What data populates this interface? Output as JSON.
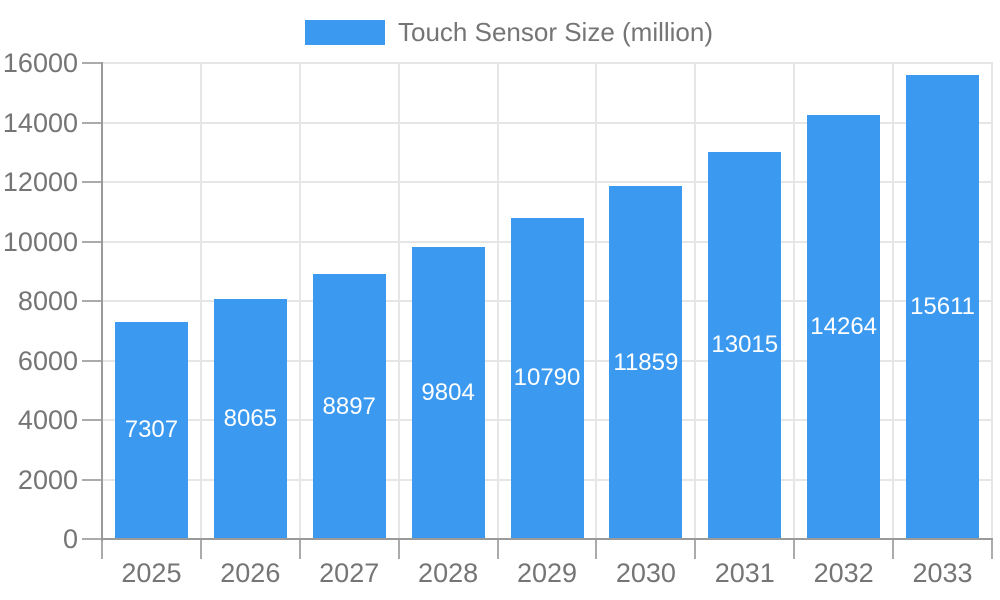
{
  "chart_data": {
    "type": "bar",
    "title": "Touch Sensor Size (million)",
    "categories": [
      "2025",
      "2026",
      "2027",
      "2028",
      "2029",
      "2030",
      "2031",
      "2032",
      "2033"
    ],
    "values": [
      7307,
      8065,
      8897,
      9804,
      10790,
      11859,
      13015,
      14264,
      15611
    ],
    "xlabel": "",
    "ylabel": "",
    "ylim": [
      0,
      16000
    ],
    "yticks": [
      0,
      2000,
      4000,
      6000,
      8000,
      10000,
      12000,
      14000,
      16000
    ],
    "grid": true,
    "value_labels": "inside-center",
    "legend_position": "top-center",
    "legend_label": "Touch Sensor Size (million)",
    "colors": {
      "bar": "#3B99F0",
      "value_label": "#FFFFFF",
      "axis_label": "#757575",
      "legend_text": "#757575",
      "gridline": "#E6E6E6",
      "axis_line": "#9A9A9A",
      "tick": "#ABABAB",
      "background": "#FFFFFF"
    }
  }
}
